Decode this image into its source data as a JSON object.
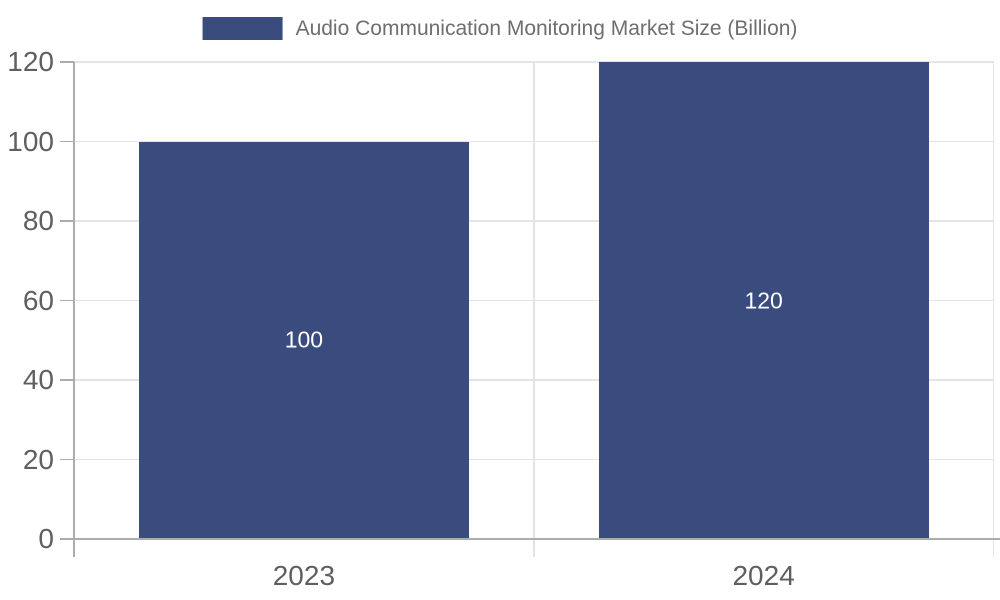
{
  "legend": {
    "label": "Audio Communication Monitoring Market Size (Billion)"
  },
  "chart_data": {
    "type": "bar",
    "title": "Audio Communication Monitoring Market Size (Billion)",
    "categories": [
      "2023",
      "2024"
    ],
    "values": [
      100,
      120
    ],
    "data_labels": [
      "100",
      "120"
    ],
    "xlabel": "",
    "ylabel": "",
    "ylim": [
      0,
      120
    ],
    "yticks": [
      0,
      20,
      40,
      60,
      80,
      100,
      120
    ],
    "grid": true,
    "legend_position": "top-center",
    "series_name": "Audio Communication Monitoring Market Size (Billion)"
  },
  "colors": {
    "bar": "#3A4B7D",
    "grid_line": "#E4E4E4",
    "axis_line": "#ACACAC",
    "tick_label": "#5F5F5F",
    "legend_label": "#6E6E6E",
    "data_label": "#FFFFFF",
    "background": "#FFFFFF"
  }
}
